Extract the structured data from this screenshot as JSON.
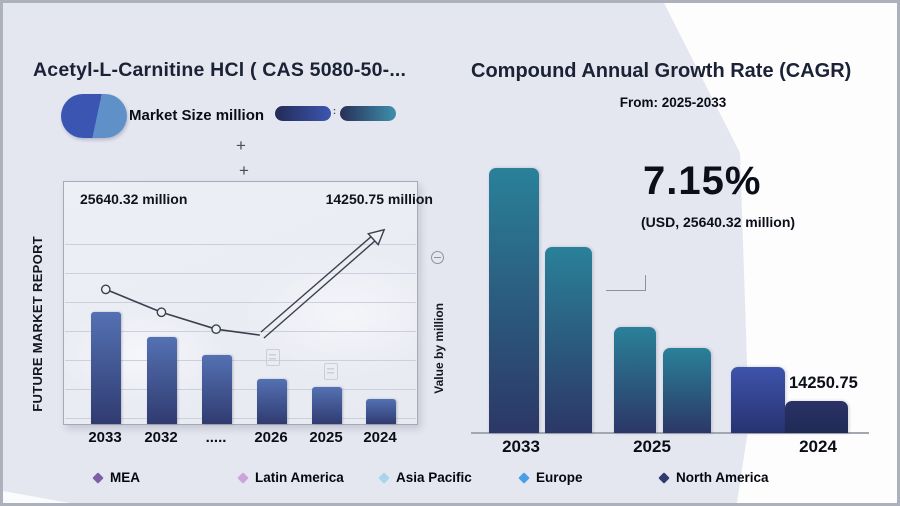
{
  "page": {
    "background": "#e4e6f0",
    "frame_border": "#adb1bc"
  },
  "left_panel": {
    "title": "Acetyl-L-Carnitine HCl ( CAS 5080-50-...",
    "market_size_label": "Market Size million",
    "pill_separator": ":",
    "plus_marks": [
      "+",
      "+"
    ],
    "annotation_left": "25640.32 million",
    "annotation_right": "14250.75 million",
    "side_watermark": "FUTURE MARKET REPORT",
    "ylabel": "Value by million"
  },
  "right_panel": {
    "title": "Compound Annual Growth Rate (CAGR)",
    "subtitle": "From: 2025-2033",
    "cagr_value": "7.15%",
    "cagr_detail": "(USD, 25640.32 million)",
    "value_label": "14250.75"
  },
  "legend": {
    "items": [
      {
        "label": "MEA",
        "color": "#7d5fa9"
      },
      {
        "label": "Latin America",
        "color": "#cda4da"
      },
      {
        "label": "Asia Pacific",
        "color": "#a9d4ec"
      },
      {
        "label": "Europe",
        "color": "#4aa0e4"
      },
      {
        "label": "North America",
        "color": "#303c6e"
      }
    ]
  },
  "colors": {
    "title_text": "#1b2235",
    "left_bar_top": "#5471b3",
    "left_bar_bottom": "#303b70",
    "teal_top": "#2a8199",
    "teal_bottom": "#2c3767",
    "blue_top": "#3e53ab",
    "blue_bottom": "#273370",
    "navy_top": "#2b3266",
    "navy_bottom": "#1f2a56",
    "capsule_left": "#3a55b2",
    "capsule_right": "#6090c8"
  },
  "chart_data": [
    {
      "type": "bar",
      "title": "Acetyl-L-Carnitine HCl ( CAS 5080-50-... Market Size million",
      "categories": [
        "2033",
        "2032",
        ".....",
        "2026",
        "2025",
        "2024"
      ],
      "bar_heights_pct": [
        100,
        78,
        62,
        40,
        33,
        22
      ],
      "values": {
        "2033": 25640.32,
        "2024": 14250.75
      },
      "value_unit": "million",
      "ylabel": "Value by million",
      "annotations": [
        "25640.32 million",
        "14250.75 million"
      ],
      "trend_line": "circle markers descend from 2033 to 2026, then double-line arrow rises toward the 14250.75 million annotation",
      "grid": true,
      "legend_position": "bottom"
    },
    {
      "type": "bar",
      "title": "Compound Annual Growth Rate (CAGR)",
      "subtitle": "From: 2025-2033",
      "categories": [
        "2033",
        "2025",
        "2024"
      ],
      "series": [
        {
          "name": "primary",
          "heights_pct": [
            100,
            40,
            25
          ]
        },
        {
          "name": "secondary",
          "heights_pct": [
            70,
            32,
            12
          ]
        }
      ],
      "cagr_percent": 7.15,
      "base_value_label": "(USD, 25640.32 million)",
      "end_value_label": "14250.75",
      "palettes_by_category": [
        "teal",
        "teal",
        "blue-navy"
      ]
    }
  ]
}
